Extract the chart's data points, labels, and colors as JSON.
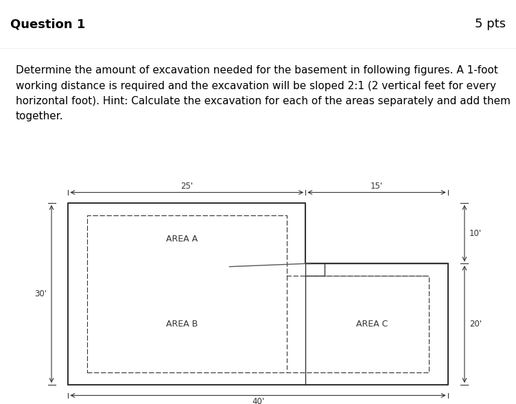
{
  "title": "Question 1",
  "pts": "5 pts",
  "body_text": "Determine the amount of excavation needed for the basement in following figures. A 1-foot\nworking distance is required and the excavation will be sloped 2:1 (2 vertical feet for every\nhorizontal foot). Hint: Calculate the excavation for each of the areas separately and add them\ntogether.",
  "header_bg": "#e8e8e8",
  "bg_color": "#ffffff",
  "text_color": "#000000",
  "dim_25": "25'",
  "dim_15": "15'",
  "dim_30": "30'",
  "dim_10": "10'",
  "dim_20": "20'",
  "dim_40": "40'",
  "label_A": "AREA A",
  "label_B": "AREA B",
  "label_C": "AREA C",
  "title_fontsize": 13,
  "body_fontsize": 11,
  "label_fontsize": 9
}
